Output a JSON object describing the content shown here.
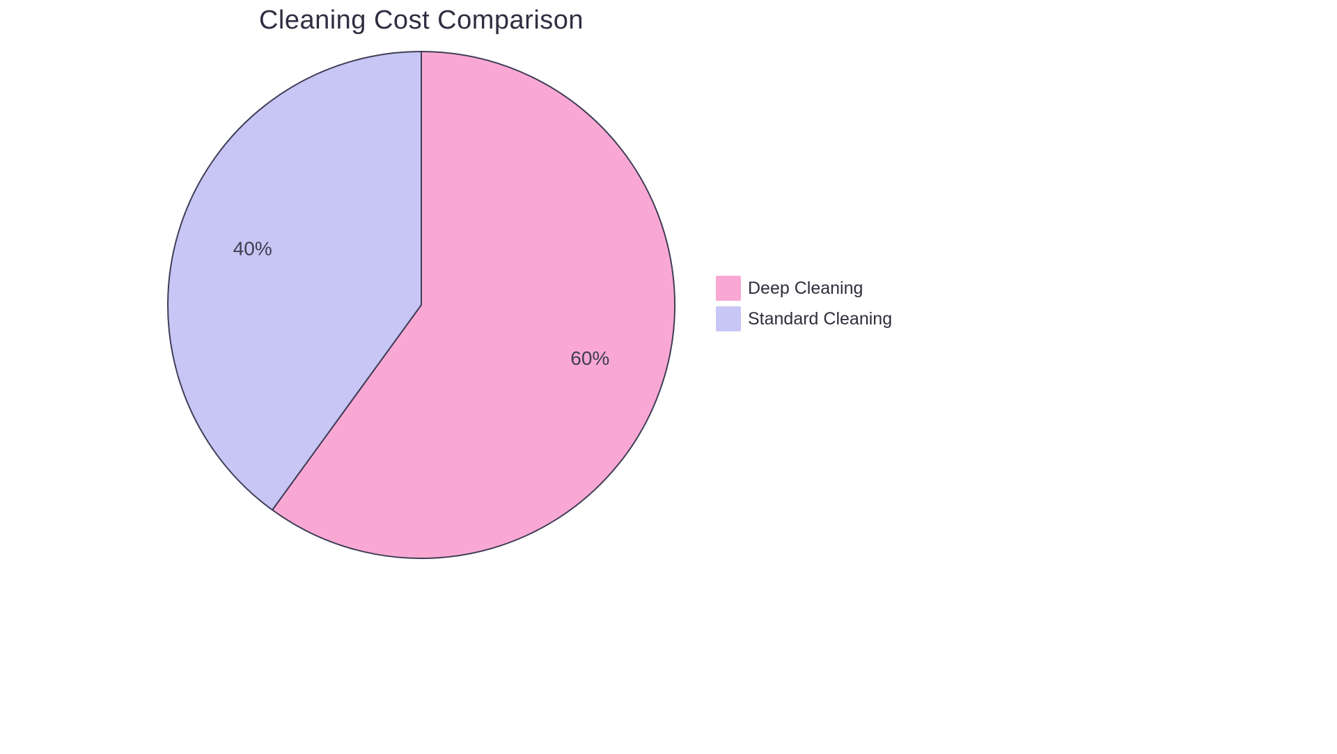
{
  "page": {
    "background": "#FFFFFF"
  },
  "chart_data": {
    "type": "pie",
    "title": "Cleaning Cost Comparison",
    "slices": [
      {
        "label": "Deep Cleaning",
        "value": 60,
        "pct_label": "60%",
        "color": "#F9A8D4"
      },
      {
        "label": "Standard Cleaning",
        "value": 40,
        "pct_label": "40%",
        "color": "#C8C6F5"
      }
    ],
    "start_angle_deg": -90,
    "direction": "clockwise",
    "stroke_color": "#3F3D56",
    "stroke_width": 2,
    "label_color": "#3F3E50",
    "label_font_size": 28,
    "legend_position": "right",
    "title_color": "#2F2E41"
  }
}
